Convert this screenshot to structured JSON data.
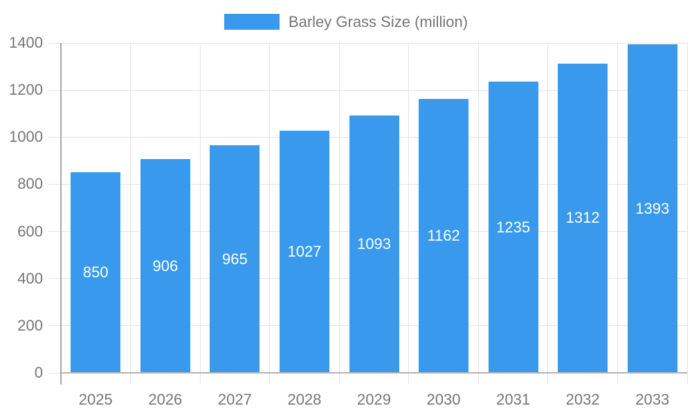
{
  "chart_data": {
    "type": "bar",
    "title": "Barley Grass Size (million)",
    "legend": {
      "label": "Barley Grass Size (million)",
      "position": "top"
    },
    "categories": [
      "2025",
      "2026",
      "2027",
      "2028",
      "2029",
      "2030",
      "2031",
      "2032",
      "2033"
    ],
    "values": [
      850,
      906,
      965,
      1027,
      1093,
      1162,
      1235,
      1312,
      1393
    ],
    "xlabel": "",
    "ylabel": "",
    "ylim": [
      0,
      1400
    ],
    "ytick_step": 200,
    "y_tick_labels": [
      "0",
      "200",
      "400",
      "600",
      "800",
      "1000",
      "1200",
      "1400"
    ],
    "grid": true,
    "value_labels_inside_bars": true,
    "colors": {
      "bar": "#3999EC",
      "bar_label": "#FFFFFF",
      "grid": "#E3E3E3",
      "x_axis": "#B3B3B3",
      "y_axis": "#A6A6A6",
      "text": "#757575",
      "background": "#FFFFFF"
    }
  }
}
